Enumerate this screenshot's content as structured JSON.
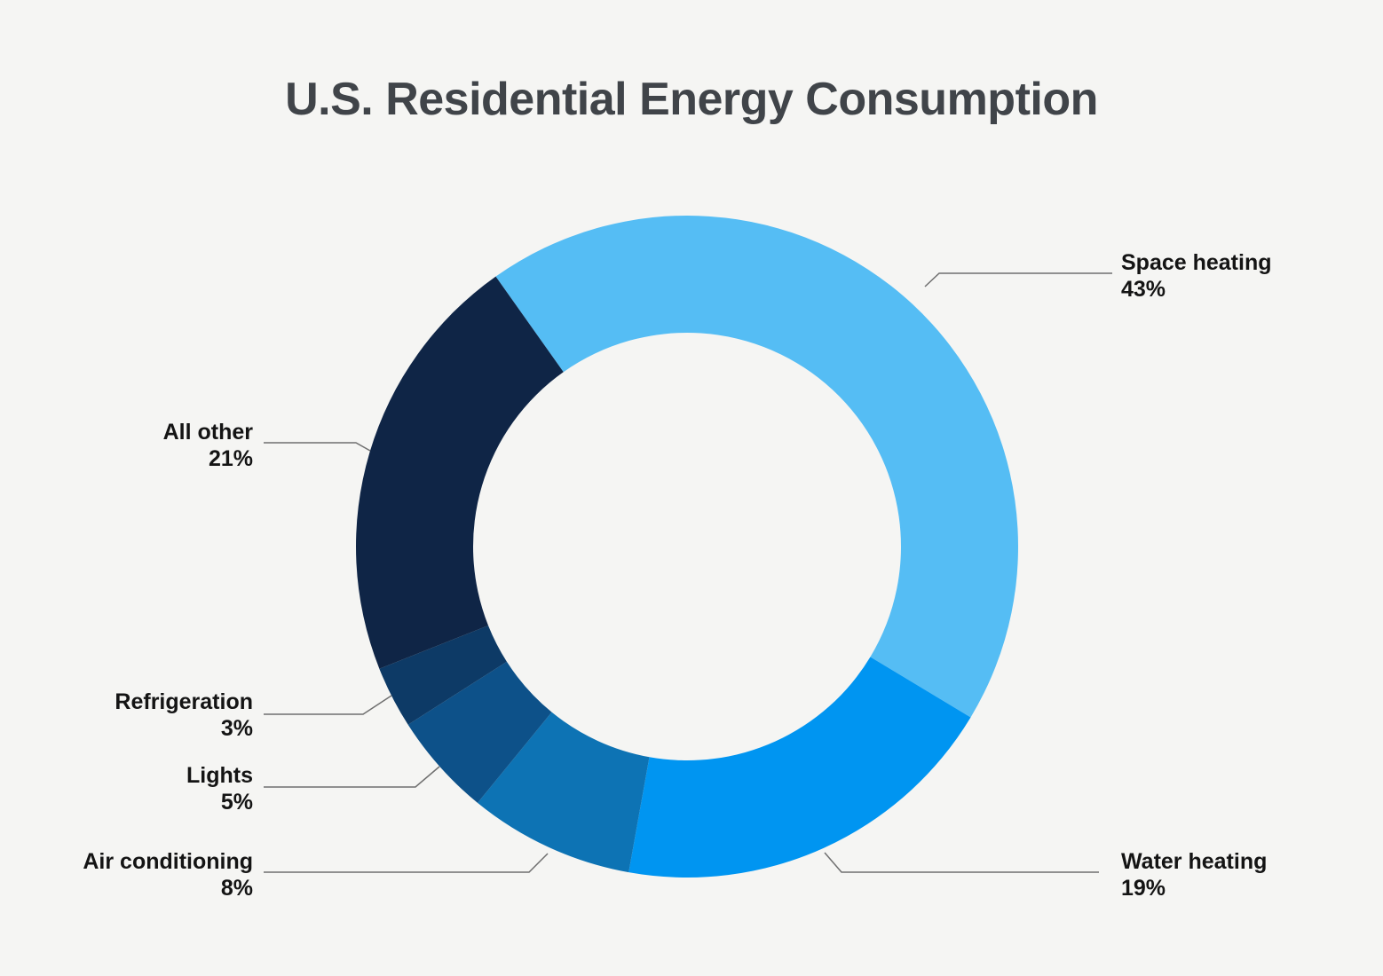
{
  "title": "U.S. Residential Energy Consumption",
  "colors": {
    "background": "#f5f5f3",
    "title_text": "#404449",
    "label_text": "#141414",
    "leader_line": "#6f6f6f"
  },
  "chart_data": {
    "type": "pie",
    "subtype": "donut",
    "title": "U.S. Residential Energy Consumption",
    "unit": "%",
    "start_angle_deg_clockwise_from_top": -35.3,
    "direction": "clockwise",
    "legend_position": "outside-callouts",
    "grid": false,
    "categories": [
      "Space heating",
      "Water heating",
      "Air conditioning",
      "Lights",
      "Refrigeration",
      "All other"
    ],
    "values": [
      43,
      19,
      8,
      5,
      3,
      21
    ],
    "slices": [
      {
        "label": "Space heating",
        "value": 43,
        "percent_label": "43%",
        "color": "#55bdf4"
      },
      {
        "label": "Water heating",
        "value": 19,
        "percent_label": "19%",
        "color": "#0095f1"
      },
      {
        "label": "Air conditioning",
        "value": 8,
        "percent_label": "8%",
        "color": "#0d73b4"
      },
      {
        "label": "Lights",
        "value": 5,
        "percent_label": "5%",
        "color": "#0d5189"
      },
      {
        "label": "Refrigeration",
        "value": 3,
        "percent_label": "3%",
        "color": "#0d3a66"
      },
      {
        "label": "All other",
        "value": 21,
        "percent_label": "21%",
        "color": "#0f2546"
      }
    ]
  }
}
